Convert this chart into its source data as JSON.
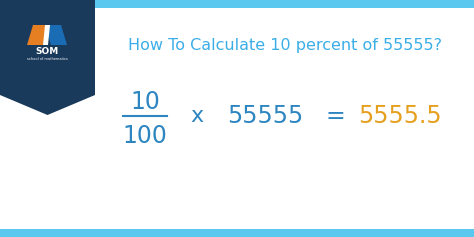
{
  "title": "How To Calculate 10 percent of 55555?",
  "title_color": "#3baee8",
  "background_color": "#ffffff",
  "numerator": "10",
  "denominator": "100",
  "multiplier": "55555",
  "equals": "=",
  "result": "5555.5",
  "fraction_color": "#2e86c1",
  "multiplier_color": "#2e86c1",
  "equals_color": "#2e86c1",
  "result_color": "#e6a020",
  "times_color": "#2e86c1",
  "top_stripe_color": "#5bc8f0",
  "bottom_stripe_color": "#5bc8f0",
  "logo_bg_color": "#1a3a5c",
  "logo_orange": "#e67e22",
  "logo_blue_icon": "#1a6db5",
  "logo_white": "#ffffff",
  "fig_width": 4.74,
  "fig_height": 2.37,
  "dpi": 100
}
